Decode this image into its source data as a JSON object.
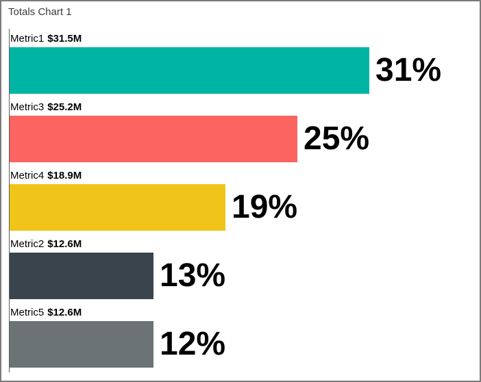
{
  "window": {
    "title": "Totals Chart 1",
    "background": "#ffffff",
    "border_color": "#7b7b7b"
  },
  "chart_data": {
    "type": "bar",
    "orientation": "horizontal",
    "title": "Totals Chart 1",
    "legend": false,
    "grid": false,
    "axis_color": "#5a5a5a",
    "x_max_value": 31.5,
    "bars": [
      {
        "label": "Metric1",
        "value_label": "$31.5M",
        "value": 31.5,
        "percent_label": "31%",
        "percent": 31,
        "color": "#00b4a4"
      },
      {
        "label": "Metric3",
        "value_label": "$25.2M",
        "value": 25.2,
        "percent_label": "25%",
        "percent": 25,
        "color": "#fb6460"
      },
      {
        "label": "Metric4",
        "value_label": "$18.9M",
        "value": 18.9,
        "percent_label": "19%",
        "percent": 19,
        "color": "#f0c419"
      },
      {
        "label": "Metric2",
        "value_label": "$12.6M",
        "value": 12.6,
        "percent_label": "13%",
        "percent": 13,
        "color": "#3a444c"
      },
      {
        "label": "Metric5",
        "value_label": "$12.6M",
        "value": 12.6,
        "percent_label": "12%",
        "percent": 12,
        "color": "#6b7377"
      }
    ]
  }
}
